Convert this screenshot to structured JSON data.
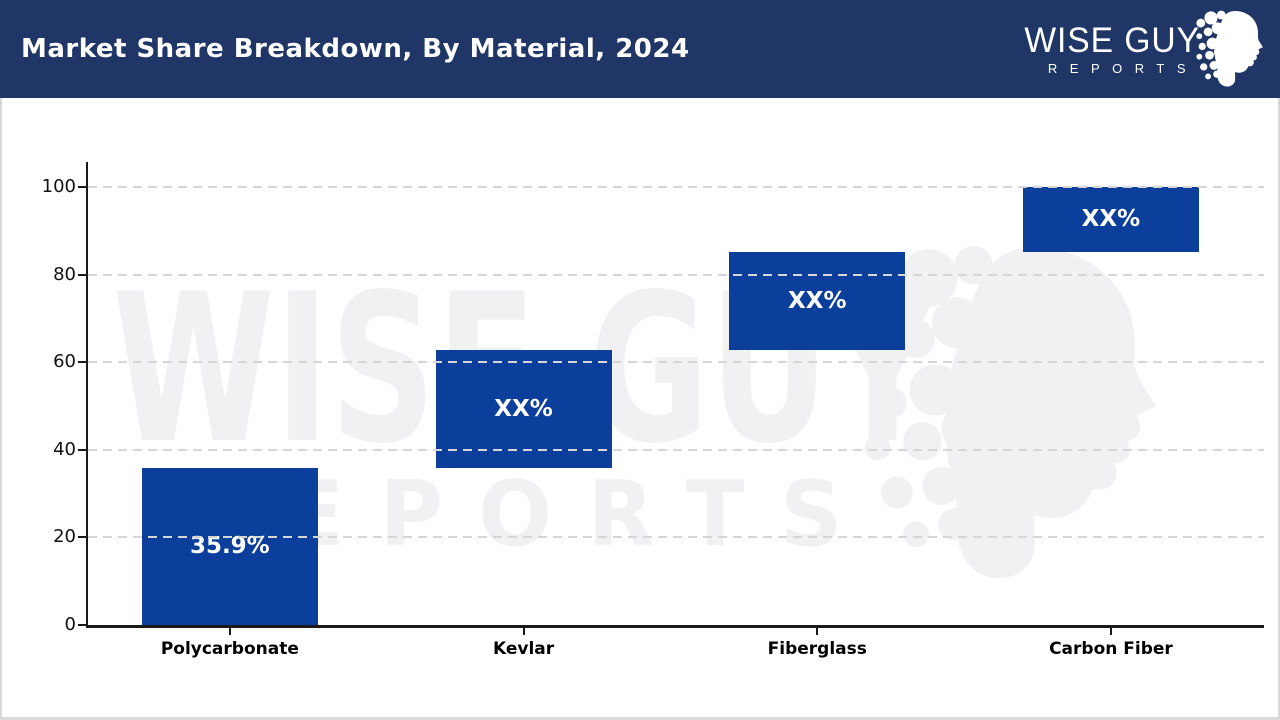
{
  "header": {
    "title": "Market Share Breakdown, By Material, 2024",
    "logo": {
      "brand_top": "WISE GUY",
      "brand_bottom": "REPORTS"
    }
  },
  "watermark": {
    "brand_top": "WISE GUY",
    "brand_bottom": "REPORTS"
  },
  "chart_data": {
    "type": "bar",
    "variant": "waterfall",
    "title": "Market Share Breakdown, By Material, 2024",
    "categories": [
      "Polycarbonate",
      "Kevlar",
      "Fiberglass",
      "Carbon Fiber"
    ],
    "segments": [
      {
        "category": "Polycarbonate",
        "start": 0,
        "end": 35.9,
        "label": "35.9%"
      },
      {
        "category": "Kevlar",
        "start": 35.9,
        "end": 62.8,
        "label": "XX%"
      },
      {
        "category": "Fiberglass",
        "start": 62.8,
        "end": 85.2,
        "label": "XX%"
      },
      {
        "category": "Carbon Fiber",
        "start": 85.2,
        "end": 100,
        "label": "XX%"
      }
    ],
    "y_ticks": [
      0,
      20,
      40,
      60,
      80,
      100
    ],
    "ylim": [
      0,
      106
    ],
    "xlabel": "",
    "ylabel": "",
    "grid": "horizontal-dashed-over-bars",
    "legend": "none",
    "bar_color": "#0C3F9B",
    "bar_label_color": "#FFFFFF"
  },
  "colors": {
    "header_bg": "#1F3666",
    "page_bg": "#FFFFFF",
    "axis": "#1A1A1A",
    "gridline": "#D6D6D6",
    "tick_label": "#111111",
    "watermark": "#F1F1F4",
    "frame_border": "#D9D9D9",
    "bar": "#0C3F9B",
    "bar_label": "#FFFFFF"
  }
}
